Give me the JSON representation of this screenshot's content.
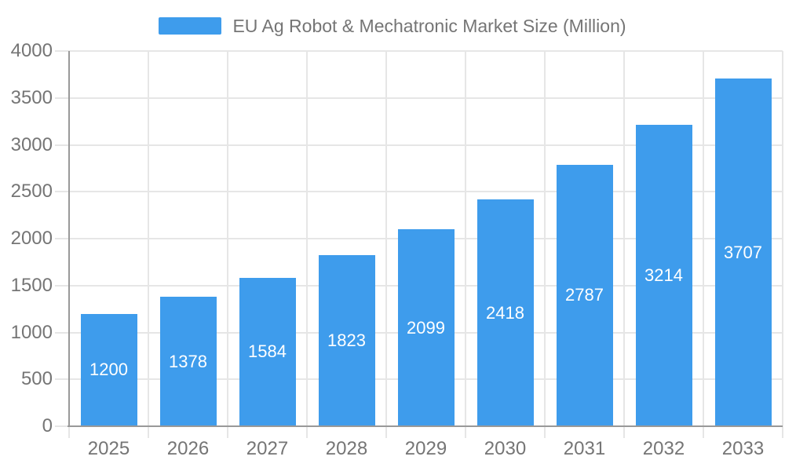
{
  "chart_data": {
    "type": "bar",
    "title": "EU Ag Robot & Mechatronic Market Size (Million)",
    "categories": [
      "2025",
      "2026",
      "2027",
      "2028",
      "2029",
      "2030",
      "2031",
      "2032",
      "2033"
    ],
    "values": [
      1200,
      1378,
      1584,
      1823,
      2099,
      2418,
      2787,
      3214,
      3707
    ],
    "xlabel": "",
    "ylabel": "",
    "ylim": [
      0,
      4000
    ],
    "ytick_step": 500,
    "grid": true,
    "legend_position": "top-center",
    "bar_value_label_position": "inside-middle",
    "colors": {
      "bar": "#3E9CEC",
      "bar_label": "#FFFFFF",
      "axis_text": "#757575",
      "grid_line": "#E6E6E6",
      "axis_line": "#999999",
      "background": "#FFFFFF"
    }
  }
}
